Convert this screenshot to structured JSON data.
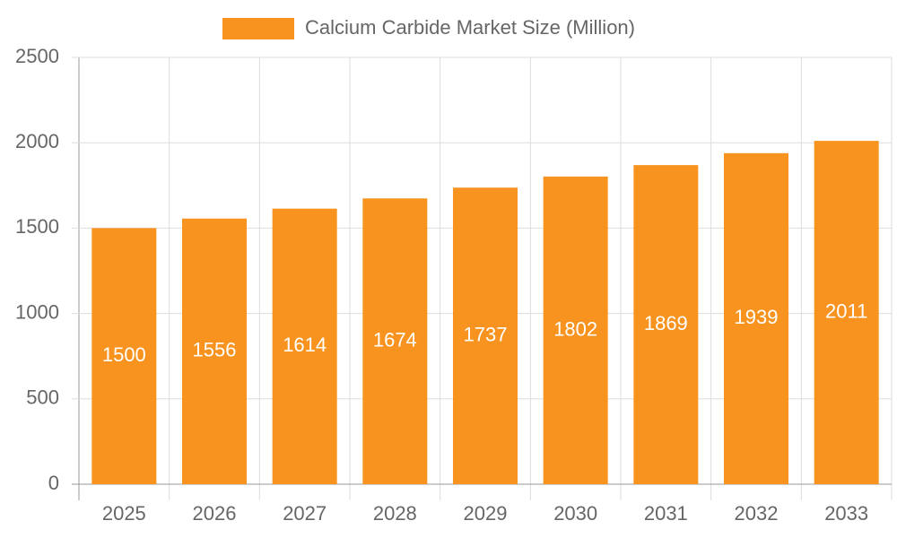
{
  "chart_data": {
    "type": "bar",
    "categories": [
      "2025",
      "2026",
      "2027",
      "2028",
      "2029",
      "2030",
      "2031",
      "2032",
      "2033"
    ],
    "series": [
      {
        "name": "Calcium Carbide Market Size (Million)",
        "color": "#f7931e",
        "values": [
          1500,
          1556,
          1614,
          1674,
          1737,
          1802,
          1869,
          1939,
          2011
        ]
      }
    ],
    "ylim": [
      0,
      2500
    ],
    "yticks": [
      0,
      500,
      1000,
      1500,
      2000,
      2500
    ],
    "grid": true,
    "legend": "top"
  }
}
